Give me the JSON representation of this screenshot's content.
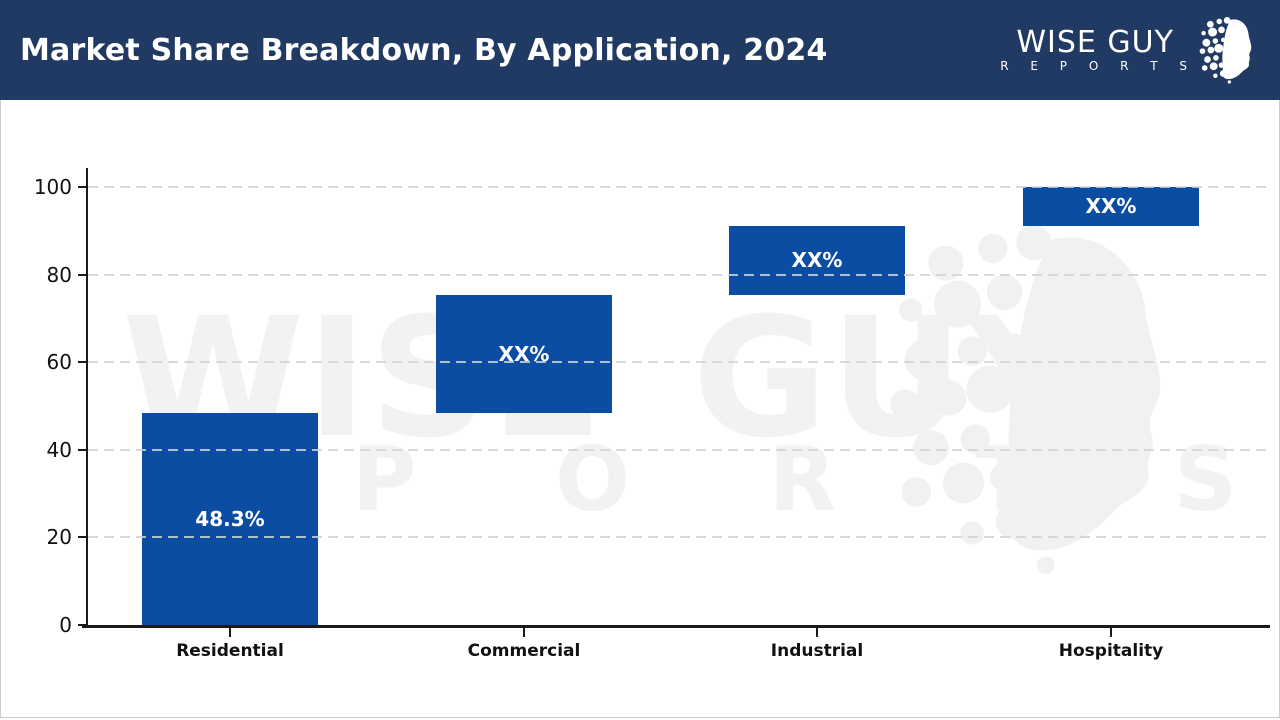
{
  "header": {
    "title": "Market Share Breakdown, By Application, 2024",
    "logo": {
      "brand": "WISE GUY",
      "sub": "R E P O R T S"
    }
  },
  "watermark": {
    "line1": "WISE GUY",
    "line2": "P O R T S"
  },
  "chart_data": {
    "type": "bar",
    "variant": "waterfall",
    "title": "Market Share Breakdown, By Application, 2024",
    "categories": [
      "Residential",
      "Commercial",
      "Industrial",
      "Hospitality"
    ],
    "segments": [
      {
        "category": "Residential",
        "start": 0,
        "end": 48.3,
        "value": 48.3,
        "label": "48.3%"
      },
      {
        "category": "Commercial",
        "start": 48.3,
        "end": 75.4,
        "value": 27.1,
        "label": "XX%"
      },
      {
        "category": "Industrial",
        "start": 75.4,
        "end": 91.2,
        "value": 15.8,
        "label": "XX%"
      },
      {
        "category": "Hospitality",
        "start": 91.2,
        "end": 100,
        "value": 8.8,
        "label": "XX%"
      }
    ],
    "xlabel": "",
    "ylabel": "",
    "ylim": [
      0,
      105
    ],
    "yticks": [
      0,
      20,
      40,
      60,
      80,
      100
    ],
    "grid": "horizontal-dashed",
    "legend": "none",
    "bar_color": "#0b4da2",
    "bar_label_color": "#ffffff",
    "header_color": "#203a64"
  }
}
